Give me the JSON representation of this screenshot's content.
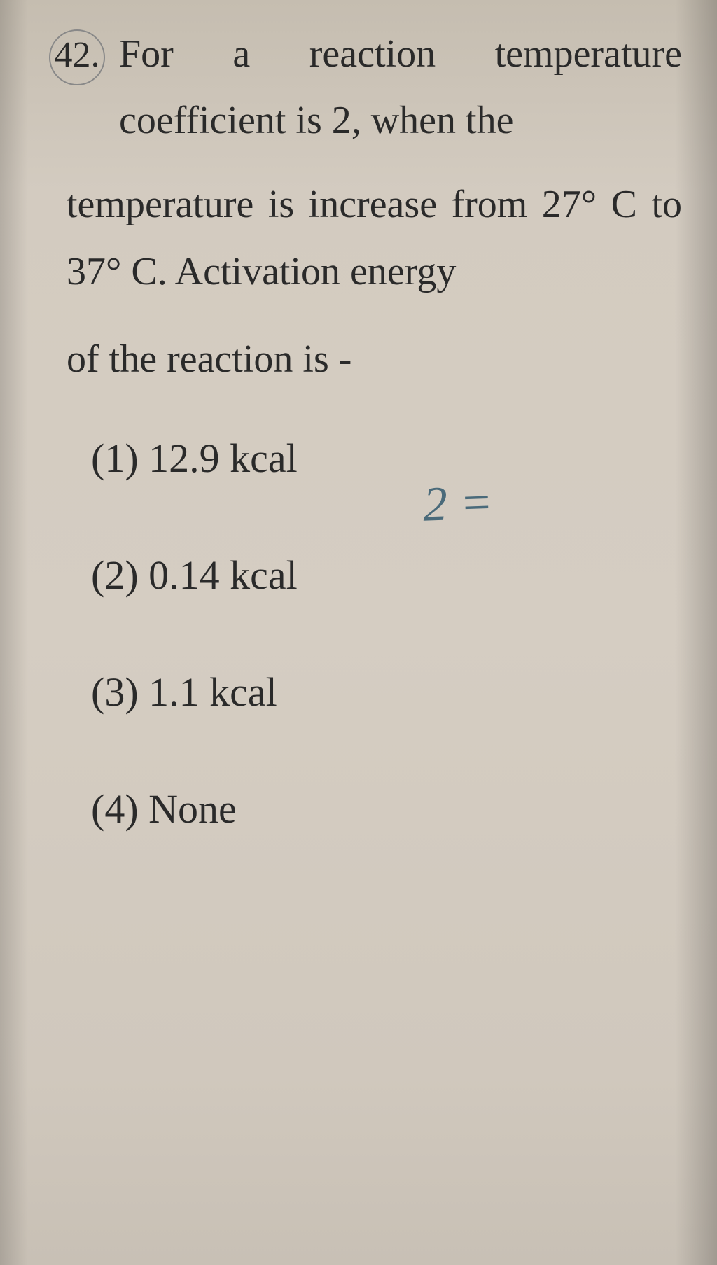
{
  "question": {
    "number": "42.",
    "text_line1": "For a reaction temperature coefficient is 2, when the",
    "text_line2": "temperature is increase from 27° C to 37° C. Activation energy",
    "text_line3": "of the reaction is -"
  },
  "options": [
    {
      "label": "(1) 12.9 kcal"
    },
    {
      "label": "(2) 0.14 kcal"
    },
    {
      "label": "(3) 1.1 kcal"
    },
    {
      "label": "(4) None"
    }
  ],
  "handwritten": {
    "annotation1": "2 ="
  },
  "styling": {
    "background_color": "#d0c8bd",
    "text_color": "#2a2a2a",
    "handwritten_color": "#4a6a7a",
    "question_fontsize": 56,
    "option_fontsize": 58,
    "number_fontsize": 52,
    "handwritten_fontsize": 70,
    "font_family": "Georgia, Times New Roman, serif"
  }
}
